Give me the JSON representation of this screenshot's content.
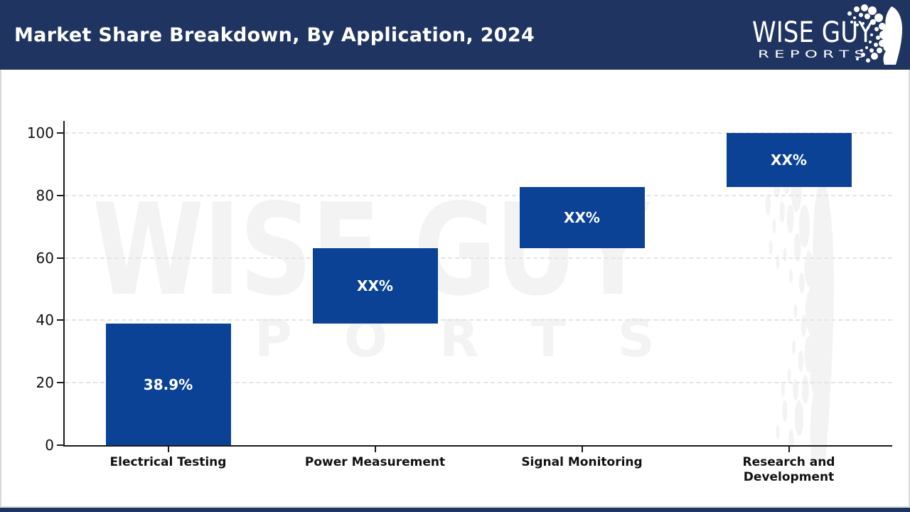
{
  "header": {
    "title": "Market Share Breakdown, By Application, 2024",
    "logo": {
      "line1": "WISE GUY",
      "line2": "R E P O R T S"
    }
  },
  "watermark": {
    "line1": "WISE GUY",
    "line2": "P O R T S"
  },
  "chart_data": {
    "type": "bar",
    "subtype": "waterfall",
    "title": "Market Share Breakdown, By Application, 2024",
    "xlabel": "",
    "ylabel": "",
    "categories": [
      "Electrical Testing",
      "Power Measurement",
      "Signal Monitoring",
      "Research and Development"
    ],
    "segments": [
      {
        "category": "Electrical Testing",
        "start": 0,
        "end": 38.9,
        "label": "38.9%"
      },
      {
        "category": "Power Measurement",
        "start": 38.9,
        "end": 63,
        "label": "XX%"
      },
      {
        "category": "Signal Monitoring",
        "start": 63,
        "end": 82.7,
        "label": "XX%"
      },
      {
        "category": "Research and Development",
        "start": 82.7,
        "end": 100,
        "label": "XX%"
      }
    ],
    "yticks": [
      0,
      20,
      40,
      60,
      80,
      100
    ],
    "ylim": [
      0,
      104
    ],
    "grid": "horizontal-dashed",
    "legend": "none",
    "bar_color": "#0b4295",
    "bar_label_color": "#ffffff"
  },
  "colors": {
    "header_bg": "#203461",
    "footer_bg": "#203461",
    "bar": "#0b4295",
    "gridline": "#e4e4e4",
    "axis": "#1a1a1a",
    "watermark": "#f3f3f3"
  }
}
